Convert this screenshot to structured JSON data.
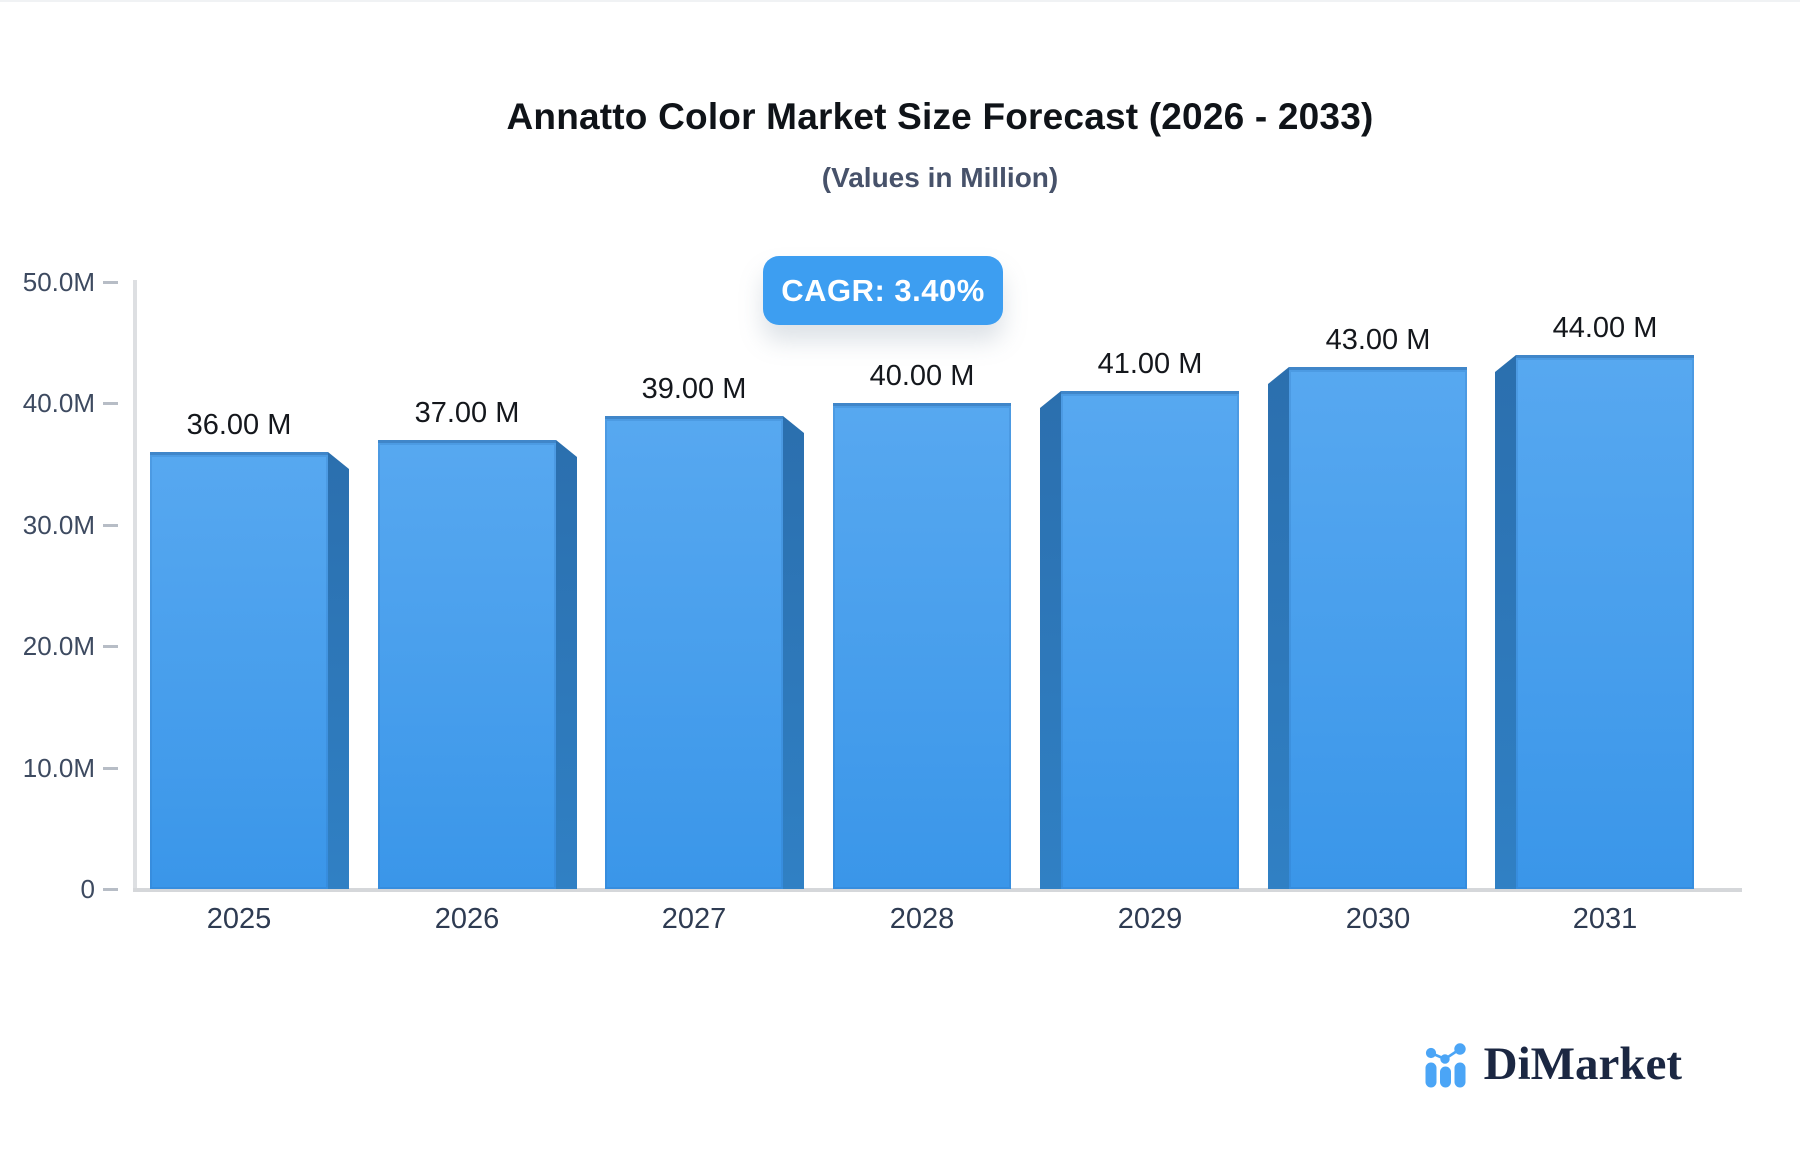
{
  "chart_data": {
    "type": "bar",
    "title": "Annatto Color Market Size Forecast (2026 - 2033)",
    "subtitle": "(Values in Million)",
    "cagr_label": "CAGR: 3.40%",
    "unit": "Million",
    "categories": [
      "2025",
      "2026",
      "2027",
      "2028",
      "2029",
      "2030",
      "2031"
    ],
    "values": [
      36,
      37,
      39,
      40,
      41,
      43,
      44
    ],
    "value_labels": [
      "36.00 M",
      "37.00 M",
      "39.00 M",
      "40.00 M",
      "41.00 M",
      "43.00 M",
      "44.00 M"
    ],
    "ylim": [
      0,
      50
    ],
    "yticks": [
      {
        "v": 0,
        "label": "0"
      },
      {
        "v": 10,
        "label": "10.0M"
      },
      {
        "v": 20,
        "label": "20.0M"
      },
      {
        "v": 30,
        "label": "30.0M"
      },
      {
        "v": 40,
        "label": "40.0M"
      },
      {
        "v": 50,
        "label": "50.0M"
      }
    ],
    "grid": false,
    "legend": false,
    "style": {
      "face_top": "#57a8f0",
      "face_bottom": "#3a96e9",
      "top_edge": "#4086c9",
      "side_dark_top": "#2b6fae",
      "side_dark_bottom": "#3080c4",
      "effect": "3d-center-vanishing"
    }
  },
  "badge": {
    "bg": "#3d9ef1"
  },
  "footer": {
    "brand": "DiMarket",
    "brand_color": "#1b2742",
    "icon_color": "#4ba5f6"
  }
}
